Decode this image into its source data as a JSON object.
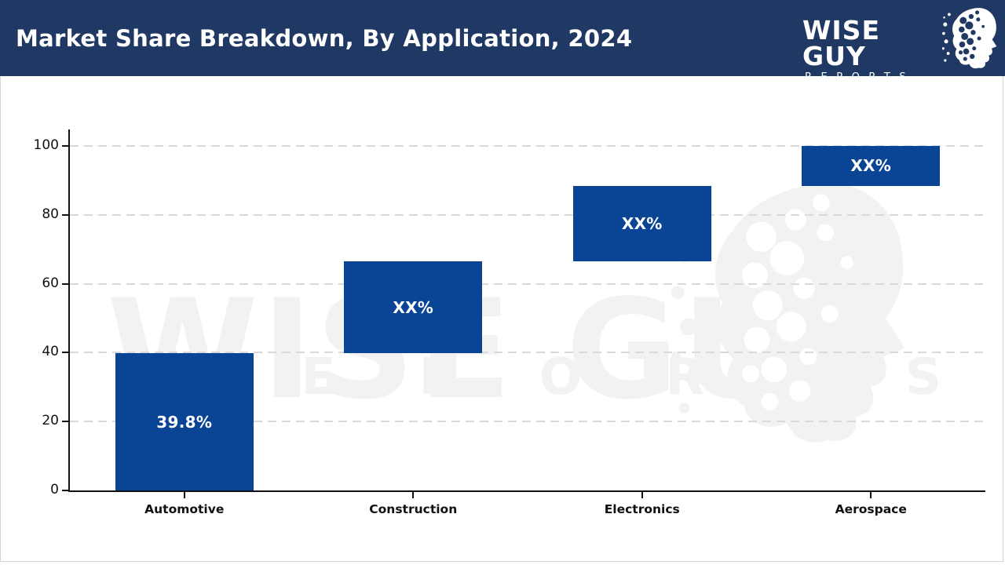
{
  "header": {
    "title": "Market Share Breakdown, By Application, 2024",
    "bg_color": "#203864",
    "logo": {
      "line1": "WISE GUY",
      "line2": "REPORTS"
    }
  },
  "watermark": {
    "line1": "WISE GU",
    "line2": "R E P O R T S"
  },
  "chart_data": {
    "type": "waterfall",
    "title": "Market Share Breakdown, By Application, 2024",
    "categories": [
      "Automotive",
      "Construction",
      "Electronics",
      "Aerospace"
    ],
    "segments": [
      {
        "category": "Automotive",
        "start": 0,
        "end": 39.8,
        "value_est": 39.8,
        "label": "39.8%"
      },
      {
        "category": "Construction",
        "start": 39.8,
        "end": 66.5,
        "value_est": 26.7,
        "label": "XX%"
      },
      {
        "category": "Electronics",
        "start": 66.5,
        "end": 88.4,
        "value_est": 21.9,
        "label": "XX%"
      },
      {
        "category": "Aerospace",
        "start": 88.4,
        "end": 100,
        "value_est": 11.6,
        "label": "XX%"
      }
    ],
    "yticks": [
      0,
      20,
      40,
      60,
      80,
      100
    ],
    "ylim": [
      0,
      105
    ],
    "grid": "dashed-horizontal",
    "gridline_color": "#d9d9d9",
    "bar_color": "#0a4595",
    "bar_label_color": "#ffffff",
    "axis_color": "#111111",
    "legend": "none"
  }
}
